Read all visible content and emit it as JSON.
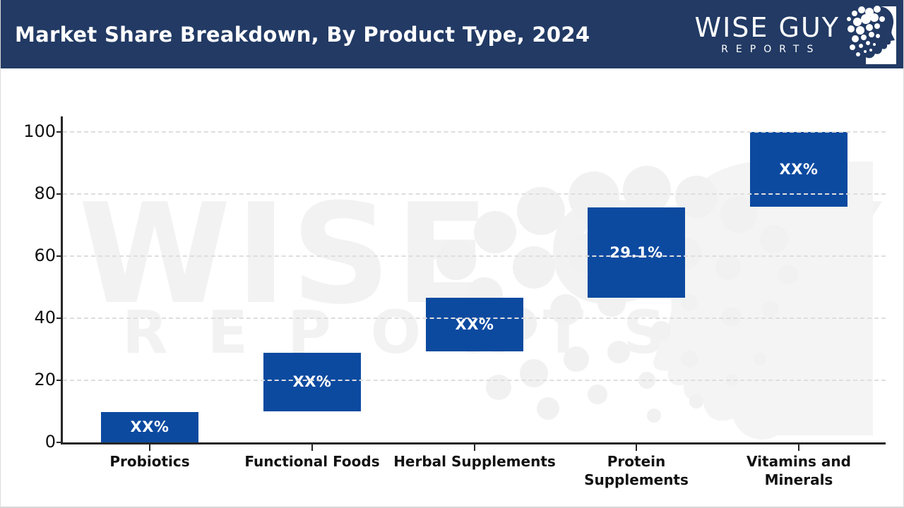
{
  "header": {
    "title": "Market Share Breakdown, By Product Type, 2024",
    "logo": {
      "line1": "WISE GUY",
      "line2": "REPORTS"
    }
  },
  "watermark": {
    "line1": "WISE GUY",
    "line2": "REPORTS"
  },
  "colors": {
    "header_bg": "#223a64",
    "bar": "#0c4aa0",
    "bar_label": "#ffffff",
    "gridline": "#dedede",
    "axis": "#262626",
    "watermark": "#f2f2f2"
  },
  "chart_data": {
    "type": "bar",
    "subtype": "waterfall",
    "title": "Market Share Breakdown, By Product Type, 2024",
    "xlabel": "",
    "ylabel": "",
    "ylim": [
      0,
      105
    ],
    "grid": "horizontal dashed at y ticks, drawn over bars",
    "legend": "none",
    "y_ticks": [
      0,
      20,
      40,
      60,
      80,
      100
    ],
    "categories": [
      "Probiotics",
      "Functional Foods",
      "Herbal Supplements",
      "Protein Supplements",
      "Vitamins and Minerals"
    ],
    "tick_labels": [
      "Probiotics",
      "Functional Foods",
      "Herbal Supplements",
      "Protein\nSupplements",
      "Vitamins and\nMinerals"
    ],
    "segments": [
      {
        "category": "Probiotics",
        "start": 0,
        "end": 9.8,
        "value": 9.8,
        "label": "XX%"
      },
      {
        "category": "Functional Foods",
        "start": 10.0,
        "end": 28.9,
        "value": 18.9,
        "label": "XX%"
      },
      {
        "category": "Herbal Supplements",
        "start": 29.3,
        "end": 46.6,
        "value": 17.3,
        "label": "XX%"
      },
      {
        "category": "Protein Supplements",
        "start": 46.6,
        "end": 75.7,
        "value": 29.1,
        "label": "29.1%"
      },
      {
        "category": "Vitamins and Minerals",
        "start": 75.9,
        "end": 100,
        "value": 24.1,
        "label": "XX%"
      }
    ]
  }
}
